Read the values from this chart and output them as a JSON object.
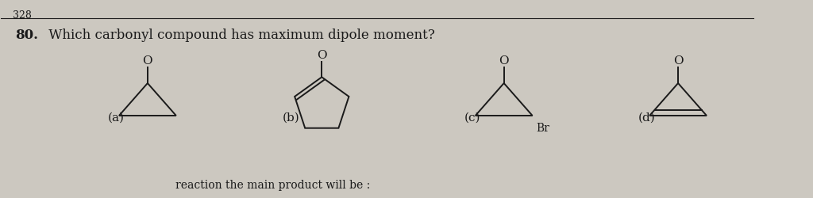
{
  "title_bold": "80.",
  "title_rest": " Which carbonyl compound has maximum dipole moment?",
  "background_color": "#ccc8c0",
  "text_color": "#1a1a1a",
  "labels": [
    "(a)",
    "(b)",
    "(c)",
    "(d)"
  ],
  "figsize": [
    10.24,
    2.5
  ],
  "dpi": 100,
  "page_number": "328"
}
